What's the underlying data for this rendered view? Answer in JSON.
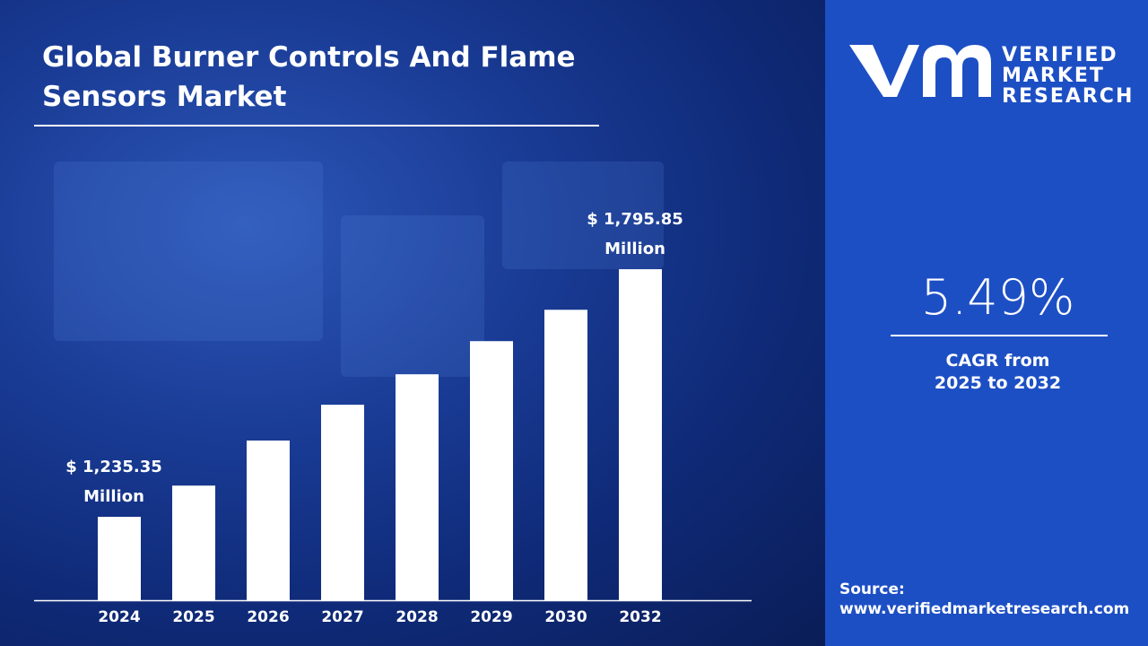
{
  "title": "Global Burner Controls And Flame Sensors Market",
  "brand": {
    "name_line1": "VERIFIED",
    "name_line2": "MARKET",
    "name_line3": "RESEARCH",
    "colors": {
      "panel": "#1d4fc4",
      "background": "#0f2a78",
      "bars": "#ffffff"
    }
  },
  "cagr": {
    "value": "5.49%",
    "label_line1": "CAGR from",
    "label_line2": "2025 to 2032"
  },
  "source": {
    "label": "Source:",
    "url": "www.verifiedmarketresearch.com"
  },
  "chart_data": {
    "type": "bar",
    "title": "Global Burner Controls And Flame Sensors Market",
    "categories": [
      "2024",
      "2025",
      "2026",
      "2027",
      "2028",
      "2029",
      "2030",
      "2032"
    ],
    "values": [
      1235.35,
      1306,
      1408,
      1489,
      1558,
      1633,
      1704,
      1795.85
    ],
    "unit": "USD Million",
    "annotations": [
      {
        "category": "2024",
        "line1": "$ 1,235.35",
        "line2": "Million"
      },
      {
        "category": "2032",
        "line1": "$ 1,795.85",
        "line2": "Million"
      }
    ],
    "grid": false,
    "xlabel": "",
    "ylabel": ""
  }
}
